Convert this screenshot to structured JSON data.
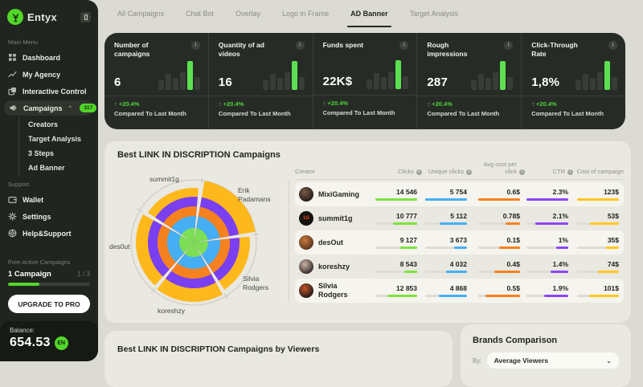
{
  "sidebar": {
    "brand": "Entyx",
    "main_menu_label": "Main Menu",
    "menu": [
      {
        "label": "Dashboard"
      },
      {
        "label": "My Agency"
      },
      {
        "label": "Interactive Control"
      },
      {
        "label": "Campaigns",
        "badge": "317"
      }
    ],
    "submenu": [
      "Creators",
      "Target Analysis",
      "3 Steps",
      "Ad Banner"
    ],
    "support_label": "Support",
    "support": [
      {
        "label": "Wallet"
      },
      {
        "label": "Settings"
      },
      {
        "label": "Help&Support"
      }
    ],
    "free_campaigns": {
      "label": "Free Active Campaigns",
      "current": "1 Campaign",
      "ratio": "1 / 3",
      "progress_pct": 38
    },
    "upgrade_label": "UPGRADE TO PRO",
    "balance": {
      "label": "Balance:",
      "value": "654.53",
      "badge": "EN"
    }
  },
  "tabs": [
    {
      "label": "All Campaigns",
      "active": false
    },
    {
      "label": "Chat Bot",
      "active": false
    },
    {
      "label": "Overlay",
      "active": false
    },
    {
      "label": "Logo in Frame",
      "active": false
    },
    {
      "label": "AD Banner",
      "active": true
    },
    {
      "label": "Target Analysis",
      "active": false
    }
  ],
  "stats": {
    "mini_bars": [
      32,
      55,
      42,
      60,
      100,
      45
    ],
    "highlight_index": 4,
    "cards": [
      {
        "title": "Number of campaigns",
        "value": "6",
        "change": "+20.4%",
        "compare": "Compared To Last Month"
      },
      {
        "title": "Quantity of ad videos",
        "value": "16",
        "change": "+20.4%",
        "compare": "Compared To Last Month"
      },
      {
        "title": "Funds spent",
        "value": "22K$",
        "change": "+20.4%",
        "compare": "Compared To Last Month"
      },
      {
        "title": "Rough impressions",
        "value": "287",
        "change": "+20.4%",
        "compare": "Compared To Last Month"
      },
      {
        "title": "Click-Through Rate",
        "value": "1,8%",
        "change": "+20.4%",
        "compare": "Compared To Last Month"
      }
    ]
  },
  "campaigns_section": {
    "title": "Best LINK IN DISCRIPTION Campaigns",
    "chart": {
      "type": "polar-rose",
      "rings": [
        {
          "color": "#7ddd55",
          "r": 18
        },
        {
          "color": "#45aef5",
          "r": 33
        },
        {
          "color": "#f5821f",
          "r": 45
        },
        {
          "color": "#7b3ff2",
          "r": 57
        }
      ],
      "outer_color": "#fdb81b",
      "guide_radius": 78,
      "sectors": [
        {
          "label": "Erik Padamans",
          "start": 10,
          "end": 80,
          "outer": 78
        },
        {
          "label": "summit1g",
          "start": 85,
          "end": 147,
          "outer": 68
        },
        {
          "label": "des0ut",
          "start": 151,
          "end": 228,
          "outer": 72
        },
        {
          "label": "koreshzy",
          "start": 232,
          "end": 299,
          "outer": 74
        },
        {
          "label": "Silvia Rodgers",
          "start": 303,
          "end": 366,
          "outer": 70
        }
      ]
    },
    "table": {
      "headers": [
        {
          "label": "Creator",
          "info": false
        },
        {
          "label": "Clicks",
          "info": true
        },
        {
          "label": "Unique clicks",
          "info": true
        },
        {
          "label": "Avg cost per click",
          "info": true
        },
        {
          "label": "CTR",
          "info": true
        },
        {
          "label": "Cost of campaign",
          "info": false
        }
      ],
      "bar_colors": [
        "#7ce23f",
        "#45aef5",
        "#f5821f",
        "#8b45f7",
        "#ffc71f"
      ],
      "rows": [
        {
          "creator": "MixiGaming",
          "avatar": {
            "kind": "photo",
            "g1": "#7a5a45",
            "g2": "#241c18"
          },
          "values": [
            "14 546",
            "5 754",
            "0.6$",
            "2.3%",
            "123$"
          ],
          "fills": [
            100,
            100,
            100,
            100,
            100
          ]
        },
        {
          "creator": "summit1g",
          "avatar": {
            "kind": "logo",
            "text": "1G",
            "bg": "#17130f",
            "color": "#e8481c"
          },
          "values": [
            "10 777",
            "5 112",
            "0.78$",
            "2.1%",
            "53$"
          ],
          "fills": [
            58,
            65,
            35,
            78,
            70
          ]
        },
        {
          "creator": "desOut",
          "avatar": {
            "kind": "photo",
            "g1": "#c57a3a",
            "g2": "#5a3420"
          },
          "values": [
            "9 127",
            "3 673",
            "0.1$",
            "1%",
            "35$"
          ],
          "fills": [
            40,
            30,
            50,
            28,
            30
          ]
        },
        {
          "creator": "koreshzy",
          "avatar": {
            "kind": "photo",
            "g1": "#cbb7a8",
            "g2": "#35282a"
          },
          "values": [
            "8 543",
            "4 032",
            "0.4$",
            "1.4%",
            "74$"
          ],
          "fills": [
            30,
            50,
            62,
            42,
            50
          ]
        },
        {
          "creator": "Silvia Rodgers",
          "avatar": {
            "kind": "photo",
            "g1": "#c2562a",
            "g2": "#201a18"
          },
          "values": [
            "12 853",
            "4 868",
            "0.5$",
            "1.9%",
            "101$"
          ],
          "fills": [
            72,
            68,
            82,
            58,
            72
          ]
        }
      ]
    }
  },
  "viewers_section": {
    "title": "Best LINK IN DISCRIPTION Campaigns by Viewers"
  },
  "brands_comparison": {
    "title": "Brands Comparison",
    "by_label": "By:",
    "selected": "Average Viewers"
  },
  "colors": {
    "accent_green": "#53d62a",
    "dark_panel": "#272b26",
    "sidebar_bg": "#20251f"
  }
}
